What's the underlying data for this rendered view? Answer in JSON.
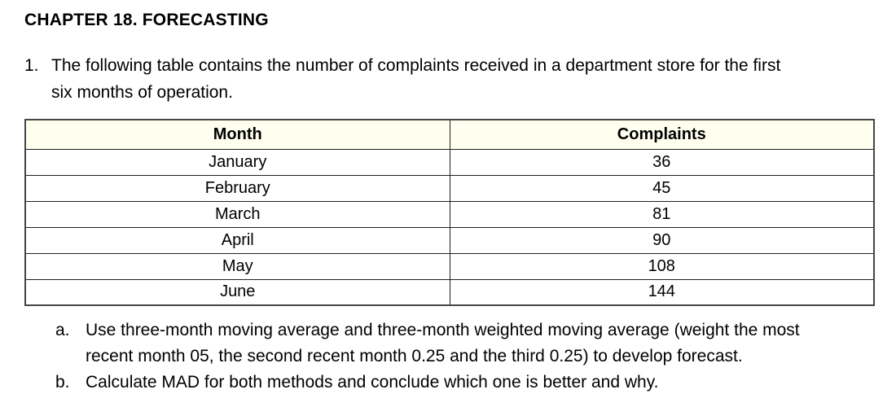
{
  "document": {
    "title": "CHAPTER 18. FORECASTING"
  },
  "question": {
    "number": "1.",
    "text": "The following table contains the number of complaints received in a department store for the first\nsix months of operation."
  },
  "table": {
    "header_bg_color": "#fffff0",
    "border_color": "#1f1f1f",
    "columns": [
      "Month",
      "Complaints"
    ],
    "rows": [
      {
        "month": "January",
        "complaints": "36"
      },
      {
        "month": "February",
        "complaints": "45"
      },
      {
        "month": "March",
        "complaints": "81"
      },
      {
        "month": "April",
        "complaints": "90"
      },
      {
        "month": "May",
        "complaints": "108"
      },
      {
        "month": "June",
        "complaints": "144"
      }
    ]
  },
  "subquestions": [
    {
      "label": "a.",
      "text": "Use three-month moving average and three-month weighted moving average (weight the most\nrecent month 05, the second recent month 0.25 and the third 0.25) to develop forecast."
    },
    {
      "label": "b.",
      "text": "Calculate MAD for both methods and conclude which one is better and why."
    }
  ],
  "chart_data": {
    "type": "table",
    "columns": [
      "Month",
      "Complaints"
    ],
    "categories": [
      "January",
      "February",
      "March",
      "April",
      "May",
      "June"
    ],
    "values": [
      36,
      45,
      81,
      90,
      108,
      144
    ]
  }
}
